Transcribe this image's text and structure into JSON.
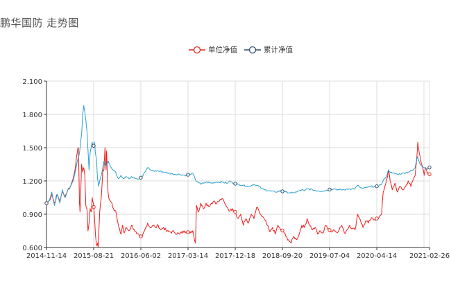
{
  "title": "鹏华国防 走势图",
  "legend": [
    {
      "label": "单位净值",
      "color": "#e0281c"
    },
    {
      "label": "累计净值",
      "color": "#2e4a6e"
    }
  ],
  "colors": {
    "unit": "#f21a1a",
    "cumulative": "#2a9fd0",
    "grid": "#dddddd",
    "axis": "#333333",
    "tick_text": "#333333"
  },
  "chart_data": {
    "type": "line",
    "title": "鹏华国防 走势图",
    "xlabel": "",
    "ylabel": "",
    "ylim": [
      0.6,
      2.1
    ],
    "y_ticks": [
      "0.600",
      "0.900",
      "1.200",
      "1.500",
      "1.800",
      "2.100"
    ],
    "x_ticks": [
      "2014-11-14",
      "2015-08-21",
      "2016-06-02",
      "2017-03-14",
      "2017-12-18",
      "2018-09-20",
      "2019-07-04",
      "2020-04-14",
      "2021-02-26"
    ],
    "grid": true,
    "legend_position": "top",
    "series": [
      {
        "name": "单位净值",
        "points": [
          [
            0,
            1.0
          ],
          [
            0.05,
            1.02
          ],
          [
            0.1,
            1.08
          ],
          [
            0.15,
            1.0
          ],
          [
            0.2,
            1.08
          ],
          [
            0.25,
            1.02
          ],
          [
            0.3,
            1.1
          ],
          [
            0.35,
            1.06
          ],
          [
            0.4,
            1.12
          ],
          [
            0.45,
            1.15
          ],
          [
            0.5,
            1.22
          ],
          [
            0.55,
            1.35
          ],
          [
            0.58,
            1.46
          ],
          [
            0.6,
            1.5
          ],
          [
            0.61,
            1.25
          ],
          [
            0.62,
            1.0
          ],
          [
            0.63,
            0.92
          ],
          [
            0.66,
            1.35
          ],
          [
            0.68,
            1.28
          ],
          [
            0.7,
            1.32
          ],
          [
            0.72,
            1.25
          ],
          [
            0.74,
            0.98
          ],
          [
            0.76,
            0.95
          ],
          [
            0.78,
            0.75
          ],
          [
            0.8,
            0.82
          ],
          [
            0.82,
            0.95
          ],
          [
            0.84,
            0.92
          ],
          [
            0.86,
            1.05
          ],
          [
            0.88,
            1.0
          ],
          [
            0.9,
            0.9
          ],
          [
            0.92,
            0.72
          ],
          [
            0.94,
            0.62
          ],
          [
            0.96,
            0.64
          ],
          [
            0.97,
            0.6
          ],
          [
            1.0,
            0.92
          ],
          [
            1.03,
            1.05
          ],
          [
            1.06,
            1.3
          ],
          [
            1.08,
            1.3
          ],
          [
            1.1,
            1.5
          ],
          [
            1.12,
            1.3
          ],
          [
            1.13,
            1.47
          ],
          [
            1.15,
            1.15
          ],
          [
            1.17,
            1.05
          ],
          [
            1.2,
            1.02
          ],
          [
            1.23,
            1.0
          ],
          [
            1.26,
            0.95
          ],
          [
            1.3,
            0.93
          ],
          [
            1.33,
            0.85
          ],
          [
            1.36,
            0.78
          ],
          [
            1.4,
            0.72
          ],
          [
            1.43,
            0.8
          ],
          [
            1.46,
            0.73
          ],
          [
            1.5,
            0.78
          ],
          [
            1.55,
            0.75
          ],
          [
            1.6,
            0.8
          ],
          [
            1.65,
            0.76
          ],
          [
            1.7,
            0.72
          ],
          [
            1.75,
            0.7
          ],
          [
            1.8,
            0.7
          ],
          [
            1.85,
            0.76
          ],
          [
            1.9,
            0.82
          ],
          [
            1.95,
            0.78
          ],
          [
            2.0,
            0.8
          ],
          [
            2.05,
            0.78
          ],
          [
            2.1,
            0.8
          ],
          [
            2.15,
            0.76
          ],
          [
            2.2,
            0.78
          ],
          [
            2.25,
            0.75
          ],
          [
            2.3,
            0.74
          ],
          [
            2.4,
            0.74
          ],
          [
            2.5,
            0.72
          ],
          [
            2.6,
            0.75
          ],
          [
            2.7,
            0.73
          ],
          [
            2.75,
            0.75
          ],
          [
            2.8,
            0.64
          ],
          [
            2.82,
            0.98
          ],
          [
            2.86,
            0.92
          ],
          [
            2.9,
            1.0
          ],
          [
            2.95,
            0.95
          ],
          [
            3.0,
            1.0
          ],
          [
            3.05,
            0.97
          ],
          [
            3.1,
            1.0
          ],
          [
            3.15,
            1.02
          ],
          [
            3.2,
            1.0
          ],
          [
            3.25,
            1.02
          ],
          [
            3.3,
            1.04
          ],
          [
            3.35,
            1.0
          ],
          [
            3.4,
            0.96
          ],
          [
            3.45,
            0.93
          ],
          [
            3.5,
            0.95
          ],
          [
            3.55,
            0.92
          ],
          [
            3.6,
            0.86
          ],
          [
            3.65,
            0.9
          ],
          [
            3.7,
            0.8
          ],
          [
            3.75,
            0.86
          ],
          [
            3.8,
            0.82
          ],
          [
            3.85,
            0.9
          ],
          [
            3.9,
            0.86
          ],
          [
            3.95,
            0.96
          ],
          [
            4.0,
            0.92
          ],
          [
            4.05,
            0.88
          ],
          [
            4.1,
            0.85
          ],
          [
            4.15,
            0.8
          ],
          [
            4.2,
            0.74
          ],
          [
            4.25,
            0.78
          ],
          [
            4.3,
            0.72
          ],
          [
            4.35,
            0.8
          ],
          [
            4.4,
            0.76
          ],
          [
            4.45,
            0.75
          ],
          [
            4.5,
            0.7
          ],
          [
            4.55,
            0.67
          ],
          [
            4.6,
            0.64
          ],
          [
            4.65,
            0.7
          ],
          [
            4.7,
            0.67
          ],
          [
            4.75,
            0.72
          ],
          [
            4.8,
            0.8
          ],
          [
            4.85,
            0.78
          ],
          [
            4.9,
            0.86
          ],
          [
            4.95,
            0.8
          ],
          [
            5.0,
            0.76
          ],
          [
            5.05,
            0.78
          ],
          [
            5.1,
            0.72
          ],
          [
            5.15,
            0.75
          ],
          [
            5.2,
            0.73
          ],
          [
            5.25,
            0.8
          ],
          [
            5.3,
            0.77
          ],
          [
            5.35,
            0.74
          ],
          [
            5.4,
            0.76
          ],
          [
            5.45,
            0.74
          ],
          [
            5.5,
            0.76
          ],
          [
            5.55,
            0.8
          ],
          [
            5.6,
            0.73
          ],
          [
            5.65,
            0.76
          ],
          [
            5.7,
            0.8
          ],
          [
            5.75,
            0.77
          ],
          [
            5.8,
            0.76
          ],
          [
            5.85,
            0.9
          ],
          [
            5.9,
            0.85
          ],
          [
            5.95,
            0.78
          ],
          [
            6.0,
            0.84
          ],
          [
            6.05,
            0.82
          ],
          [
            6.1,
            0.86
          ],
          [
            6.15,
            0.85
          ],
          [
            6.2,
            0.86
          ],
          [
            6.25,
            0.87
          ],
          [
            6.3,
            0.9
          ],
          [
            6.33,
            1.1
          ],
          [
            6.36,
            1.15
          ],
          [
            6.4,
            1.22
          ],
          [
            6.43,
            1.3
          ],
          [
            6.46,
            1.2
          ],
          [
            6.5,
            1.12
          ],
          [
            6.55,
            1.18
          ],
          [
            6.6,
            1.1
          ],
          [
            6.65,
            1.15
          ],
          [
            6.7,
            1.12
          ],
          [
            6.75,
            1.15
          ],
          [
            6.8,
            1.2
          ],
          [
            6.85,
            1.15
          ],
          [
            6.9,
            1.22
          ],
          [
            6.93,
            1.25
          ],
          [
            6.96,
            1.4
          ],
          [
            6.98,
            1.55
          ],
          [
            7.0,
            1.48
          ],
          [
            7.02,
            1.43
          ],
          [
            7.05,
            1.35
          ],
          [
            7.08,
            1.3
          ],
          [
            7.1,
            1.25
          ],
          [
            7.13,
            1.32
          ],
          [
            7.16,
            1.27
          ],
          [
            7.2,
            1.25
          ]
        ]
      },
      {
        "name": "累计净值",
        "points": [
          [
            0,
            1.0
          ],
          [
            0.05,
            1.02
          ],
          [
            0.1,
            1.1
          ],
          [
            0.15,
            0.98
          ],
          [
            0.2,
            1.08
          ],
          [
            0.25,
            1.0
          ],
          [
            0.3,
            1.12
          ],
          [
            0.35,
            1.05
          ],
          [
            0.4,
            1.12
          ],
          [
            0.45,
            1.15
          ],
          [
            0.5,
            1.2
          ],
          [
            0.55,
            1.3
          ],
          [
            0.58,
            1.38
          ],
          [
            0.62,
            1.45
          ],
          [
            0.64,
            1.55
          ],
          [
            0.66,
            1.62
          ],
          [
            0.68,
            1.8
          ],
          [
            0.7,
            1.88
          ],
          [
            0.72,
            1.82
          ],
          [
            0.74,
            1.75
          ],
          [
            0.76,
            1.65
          ],
          [
            0.78,
            1.48
          ],
          [
            0.8,
            1.3
          ],
          [
            0.82,
            1.45
          ],
          [
            0.84,
            1.5
          ],
          [
            0.86,
            1.55
          ],
          [
            0.88,
            1.5
          ],
          [
            0.9,
            1.55
          ],
          [
            0.92,
            1.45
          ],
          [
            0.94,
            1.38
          ],
          [
            0.96,
            1.22
          ],
          [
            0.98,
            1.15
          ],
          [
            1.0,
            1.2
          ],
          [
            1.03,
            1.25
          ],
          [
            1.06,
            1.33
          ],
          [
            1.08,
            1.38
          ],
          [
            1.12,
            1.33
          ],
          [
            1.16,
            1.38
          ],
          [
            1.2,
            1.33
          ],
          [
            1.25,
            1.3
          ],
          [
            1.3,
            1.28
          ],
          [
            1.35,
            1.22
          ],
          [
            1.4,
            1.25
          ],
          [
            1.45,
            1.22
          ],
          [
            1.5,
            1.24
          ],
          [
            1.55,
            1.22
          ],
          [
            1.6,
            1.24
          ],
          [
            1.65,
            1.23
          ],
          [
            1.7,
            1.22
          ],
          [
            1.75,
            1.22
          ],
          [
            1.8,
            1.24
          ],
          [
            1.85,
            1.28
          ],
          [
            1.9,
            1.32
          ],
          [
            1.95,
            1.3
          ],
          [
            2.0,
            1.29
          ],
          [
            2.1,
            1.29
          ],
          [
            2.2,
            1.28
          ],
          [
            2.3,
            1.27
          ],
          [
            2.4,
            1.26
          ],
          [
            2.5,
            1.26
          ],
          [
            2.6,
            1.25
          ],
          [
            2.7,
            1.26
          ],
          [
            2.75,
            1.27
          ],
          [
            2.8,
            1.21
          ],
          [
            2.85,
            1.19
          ],
          [
            2.9,
            1.17
          ],
          [
            2.95,
            1.18
          ],
          [
            3.0,
            1.19
          ],
          [
            3.1,
            1.18
          ],
          [
            3.2,
            1.19
          ],
          [
            3.3,
            1.19
          ],
          [
            3.4,
            1.18
          ],
          [
            3.45,
            1.2
          ],
          [
            3.5,
            1.18
          ],
          [
            3.6,
            1.17
          ],
          [
            3.7,
            1.16
          ],
          [
            3.8,
            1.15
          ],
          [
            3.9,
            1.17
          ],
          [
            4.0,
            1.15
          ],
          [
            4.05,
            1.13
          ],
          [
            4.1,
            1.12
          ],
          [
            4.2,
            1.11
          ],
          [
            4.3,
            1.1
          ],
          [
            4.4,
            1.11
          ],
          [
            4.5,
            1.1
          ],
          [
            4.6,
            1.09
          ],
          [
            4.7,
            1.1
          ],
          [
            4.75,
            1.11
          ],
          [
            4.8,
            1.12
          ],
          [
            4.85,
            1.11
          ],
          [
            4.9,
            1.13
          ],
          [
            5.0,
            1.12
          ],
          [
            5.1,
            1.11
          ],
          [
            5.2,
            1.11
          ],
          [
            5.3,
            1.12
          ],
          [
            5.4,
            1.13
          ],
          [
            5.5,
            1.12
          ],
          [
            5.6,
            1.12
          ],
          [
            5.7,
            1.13
          ],
          [
            5.8,
            1.13
          ],
          [
            5.85,
            1.16
          ],
          [
            5.9,
            1.14
          ],
          [
            5.95,
            1.13
          ],
          [
            6.0,
            1.14
          ],
          [
            6.1,
            1.15
          ],
          [
            6.2,
            1.15
          ],
          [
            6.3,
            1.17
          ],
          [
            6.35,
            1.22
          ],
          [
            6.4,
            1.25
          ],
          [
            6.43,
            1.3
          ],
          [
            6.46,
            1.28
          ],
          [
            6.5,
            1.27
          ],
          [
            6.6,
            1.26
          ],
          [
            6.7,
            1.27
          ],
          [
            6.8,
            1.28
          ],
          [
            6.9,
            1.3
          ],
          [
            6.93,
            1.32
          ],
          [
            6.96,
            1.4
          ],
          [
            6.98,
            1.42
          ],
          [
            7.0,
            1.38
          ],
          [
            7.03,
            1.35
          ],
          [
            7.06,
            1.33
          ],
          [
            7.1,
            1.32
          ],
          [
            7.15,
            1.31
          ],
          [
            7.2,
            1.31
          ]
        ]
      }
    ]
  }
}
